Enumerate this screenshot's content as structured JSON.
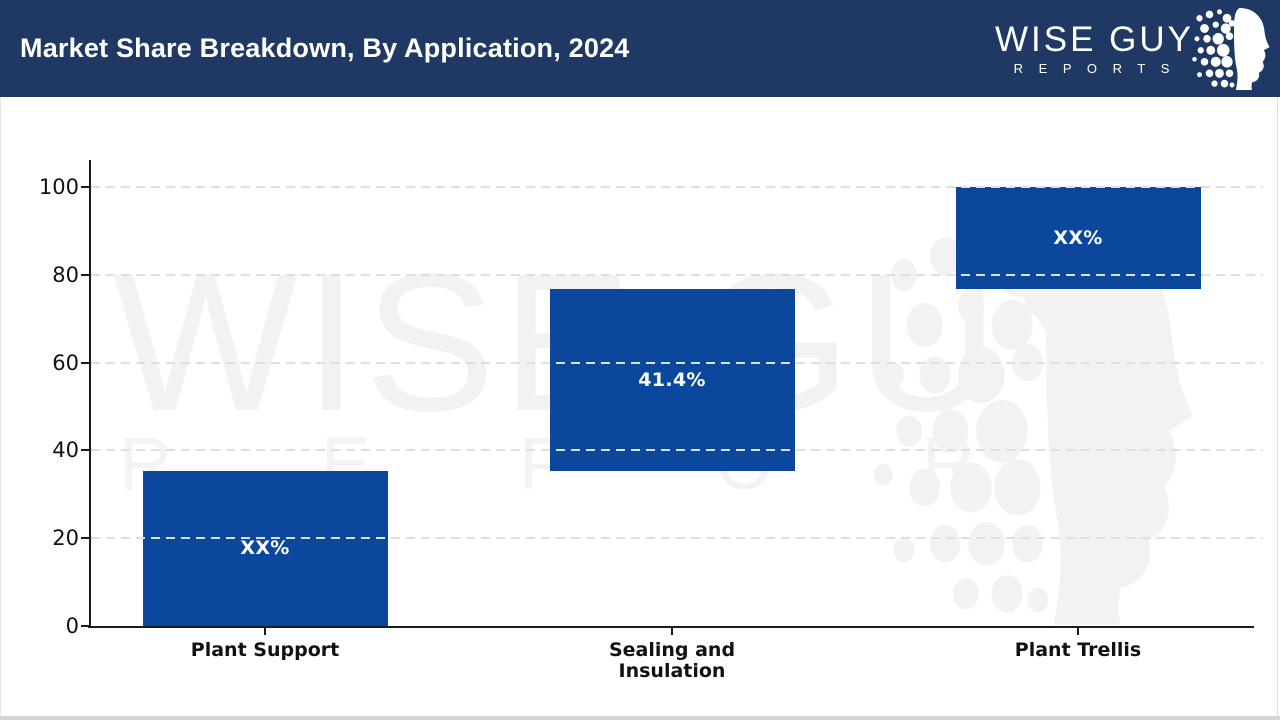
{
  "header": {
    "title": "Market Share Breakdown, By Application, 2024",
    "brand": {
      "line1": "WISE GUY",
      "line2": "R E P O R T S"
    }
  },
  "watermark": {
    "line1": "WISE GUY",
    "line2": "R E P O R T S"
  },
  "chart_data": {
    "type": "bar",
    "subtype": "floating-waterfall",
    "title": "Market Share Breakdown, By Application, 2024",
    "categories": [
      "Plant Support",
      "Sealing and\nInsulation",
      "Plant Trellis"
    ],
    "bars": [
      {
        "category": "Plant Support",
        "label": "XX%",
        "start": 0,
        "end": 35.4
      },
      {
        "category": "Sealing and Insulation",
        "label": "41.4%",
        "start": 35.4,
        "end": 76.8
      },
      {
        "category": "Plant Trellis",
        "label": "XX%",
        "start": 76.8,
        "end": 100
      }
    ],
    "xlabel": "",
    "ylabel": "",
    "ylim": [
      0,
      100
    ],
    "yticks": [
      0,
      20,
      40,
      60,
      80,
      100
    ],
    "grid": "horizontal-dashed",
    "legend": "none",
    "bar_color": "#0c479e",
    "colors": {
      "header_bg": "#1f3864",
      "grid": "#dfdfdf",
      "axis": "#1c1c1c",
      "bar_label": "#ffffff",
      "watermark": "#f2f2f2"
    }
  }
}
